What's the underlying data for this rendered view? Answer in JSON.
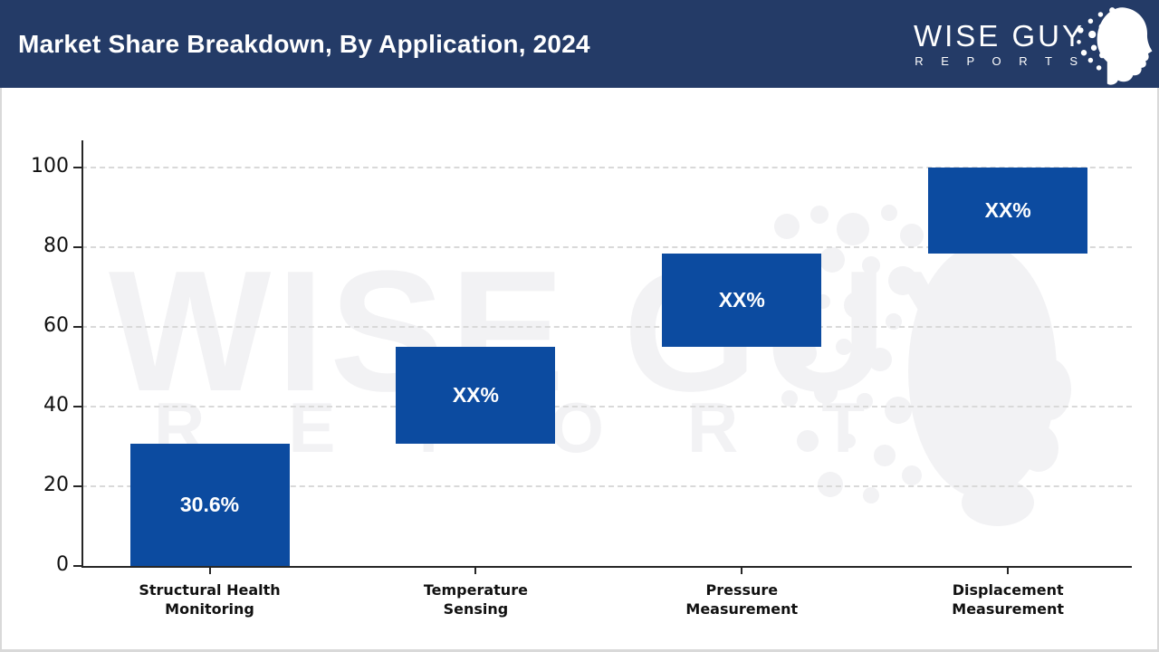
{
  "header": {
    "title": "Market Share Breakdown, By Application, 2024",
    "bg_color": "#243b67",
    "logo": {
      "line1": "WISE GUY",
      "line2": "R E P O R T S"
    }
  },
  "watermark": {
    "line1": "WISE GUY",
    "line2": "REPORTS"
  },
  "chart_data": {
    "type": "bar",
    "subtype": "waterfall",
    "title": "Market Share Breakdown, By Application, 2024",
    "ylabel": "",
    "xlabel": "",
    "ylim": [
      0,
      106
    ],
    "yticks": [
      0,
      20,
      40,
      60,
      80,
      100
    ],
    "grid": "horizontal-dashed",
    "legend": "none",
    "bar_color": "#0c4ba0",
    "value_label_color": "#ffffff",
    "categories": [
      "Structural Health Monitoring",
      "Temperature Sensing",
      "Pressure Measurement",
      "Displacement Measurement"
    ],
    "category_lines": [
      [
        "Structural Health",
        "Monitoring"
      ],
      [
        "Temperature",
        "Sensing"
      ],
      [
        "Pressure",
        "Measurement"
      ],
      [
        "Displacement",
        "Measurement"
      ]
    ],
    "segments": [
      {
        "category": "Structural Health Monitoring",
        "start": 0,
        "end": 30.6,
        "label": "30.6%"
      },
      {
        "category": "Temperature Sensing",
        "start": 30.6,
        "end": 55,
        "label": "XX%"
      },
      {
        "category": "Pressure Measurement",
        "start": 55,
        "end": 78.5,
        "label": "XX%"
      },
      {
        "category": "Displacement Measurement",
        "start": 78.5,
        "end": 100,
        "label": "XX%"
      }
    ]
  }
}
